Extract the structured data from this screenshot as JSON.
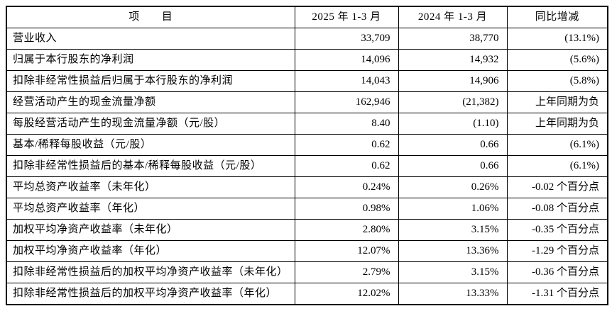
{
  "table": {
    "headers": {
      "item": "项　　目",
      "y2025": "2025 年 1-3 月",
      "y2024": "2024 年 1-3 月",
      "yoy": "同比增减"
    },
    "rows": [
      {
        "item": "营业收入",
        "y2025": "33,709",
        "y2024": "38,770",
        "yoy": "(13.1%)"
      },
      {
        "item": "归属于本行股东的净利润",
        "y2025": "14,096",
        "y2024": "14,932",
        "yoy": "(5.6%)"
      },
      {
        "item": "扣除非经常性损益后归属于本行股东的净利润",
        "y2025": "14,043",
        "y2024": "14,906",
        "yoy": "(5.8%)"
      },
      {
        "item": "经营活动产生的现金流量净额",
        "y2025": "162,946",
        "y2024": "(21,382)",
        "yoy": "上年同期为负"
      },
      {
        "item": "每股经营活动产生的现金流量净额（元/股）",
        "y2025": "8.40",
        "y2024": "(1.10)",
        "yoy": "上年同期为负"
      },
      {
        "item": "基本/稀释每股收益（元/股）",
        "y2025": "0.62",
        "y2024": "0.66",
        "yoy": "(6.1%)"
      },
      {
        "item": "扣除非经常性损益后的基本/稀释每股收益（元/股）",
        "y2025": "0.62",
        "y2024": "0.66",
        "yoy": "(6.1%)"
      },
      {
        "item": "平均总资产收益率（未年化）",
        "y2025": "0.24%",
        "y2024": "0.26%",
        "yoy": "-0.02 个百分点"
      },
      {
        "item": "平均总资产收益率（年化）",
        "y2025": "0.98%",
        "y2024": "1.06%",
        "yoy": "-0.08 个百分点"
      },
      {
        "item": "加权平均净资产收益率（未年化）",
        "y2025": "2.80%",
        "y2024": "3.15%",
        "yoy": "-0.35 个百分点"
      },
      {
        "item": "加权平均净资产收益率（年化）",
        "y2025": "12.07%",
        "y2024": "13.36%",
        "yoy": "-1.29 个百分点"
      },
      {
        "item": "扣除非经常性损益后的加权平均净资产收益率（未年化）",
        "y2025": "2.79%",
        "y2024": "3.15%",
        "yoy": "-0.36 个百分点"
      },
      {
        "item": "扣除非经常性损益后的加权平均净资产收益率（年化）",
        "y2025": "12.02%",
        "y2024": "13.33%",
        "yoy": "-1.31 个百分点"
      }
    ],
    "colors": {
      "border": "#000000",
      "text": "#000000",
      "background": "#ffffff"
    }
  }
}
